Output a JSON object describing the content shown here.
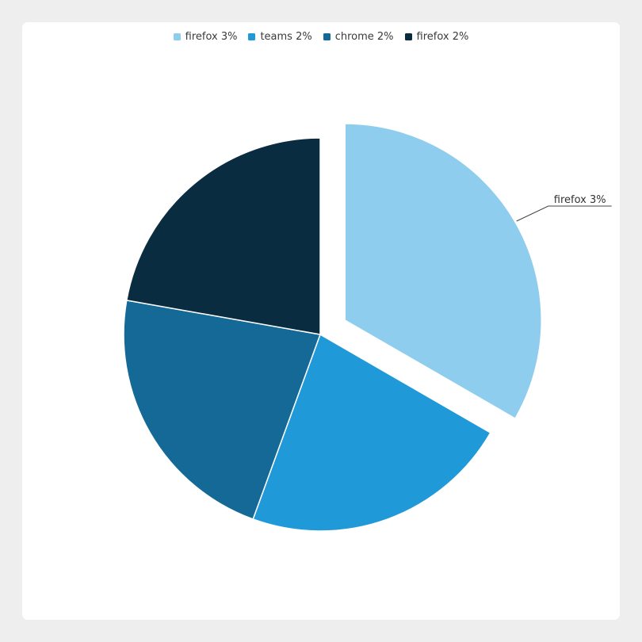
{
  "window": {
    "background_color": "#eeeeee",
    "card_background_color": "#ffffff"
  },
  "legend": {
    "position": "top",
    "text_color": "#3a3a3a",
    "items": [
      {
        "label": "firefox 3%",
        "color": "#8ecdee"
      },
      {
        "label": "teams 2%",
        "color": "#2099d9"
      },
      {
        "label": "chrome 2%",
        "color": "#156996"
      },
      {
        "label": "firefox 2%",
        "color": "#0a2c40"
      }
    ]
  },
  "annotation": {
    "label": "firefox 3%",
    "text_color": "#333333",
    "line_color": "#444444"
  },
  "chart_data": {
    "type": "pie",
    "title": "",
    "legend_position": "top",
    "start_angle_deg": 90,
    "direction": "clockwise",
    "slices": [
      {
        "label": "firefox",
        "legend_label": "firefox 3%",
        "value": 3,
        "color": "#8ecdee",
        "exploded": true
      },
      {
        "label": "teams",
        "legend_label": "teams 2%",
        "value": 2,
        "color": "#2099d9",
        "exploded": false
      },
      {
        "label": "chrome",
        "legend_label": "chrome 2%",
        "value": 2,
        "color": "#156996",
        "exploded": false
      },
      {
        "label": "firefox",
        "legend_label": "firefox 2%",
        "value": 2,
        "color": "#0a2c40",
        "exploded": false
      }
    ],
    "annotations": [
      {
        "text": "firefox 3%",
        "target_slice_index": 0
      }
    ]
  }
}
